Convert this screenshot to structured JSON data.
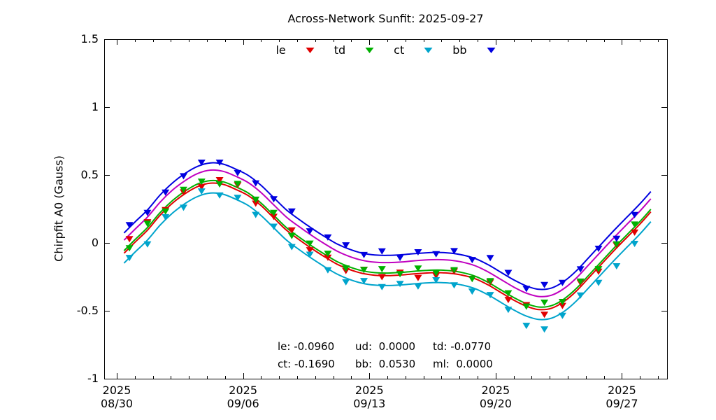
{
  "chart_data": {
    "type": "scatter",
    "title": "Across-Network Sunfit: 2025-09-27",
    "ylabel": "Chirpfit A0 (Gauss)",
    "xlabel": "",
    "ylim": [
      -1,
      1.5
    ],
    "xlim_days": [
      -0.7,
      30.5
    ],
    "x_epoch": "2025-08-30",
    "grid": false,
    "legend_position": "top-center-inside",
    "marker_shape": "triangle-down",
    "y_ticks": [
      {
        "v": -1,
        "label": "-1"
      },
      {
        "v": -0.5,
        "label": "-0.5"
      },
      {
        "v": 0,
        "label": "0"
      },
      {
        "v": 0.5,
        "label": "0.5"
      },
      {
        "v": 1,
        "label": "1"
      },
      {
        "v": 1.5,
        "label": "1.5"
      }
    ],
    "x_ticks": [
      {
        "day": 0,
        "line1": "2025",
        "line2": "08/30"
      },
      {
        "day": 7,
        "line1": "2025",
        "line2": "09/06"
      },
      {
        "day": 14,
        "line1": "2025",
        "line2": "09/13"
      },
      {
        "day": 21,
        "line1": "2025",
        "line2": "09/20"
      },
      {
        "day": 28,
        "line1": "2025",
        "line2": "09/27"
      }
    ],
    "x_minor_tick_step_days": 1,
    "legend": [
      {
        "label": "le",
        "color": "#e00000"
      },
      {
        "label": "td",
        "color": "#00b000"
      },
      {
        "label": "ct",
        "color": "#00a4cc"
      },
      {
        "label": "bb",
        "color": "#0000e0"
      }
    ],
    "fit_params": [
      "le: -0.0960",
      "ud:  0.0000",
      "td: -0.0770",
      "ct: -0.1690",
      "bb:  0.0530",
      "ml:  0.0000"
    ],
    "mean_curve_days_values": [
      [
        0.4,
        0.02
      ],
      [
        1.0,
        0.1
      ],
      [
        1.7,
        0.19
      ],
      [
        2.4,
        0.3
      ],
      [
        3.1,
        0.39
      ],
      [
        3.8,
        0.46
      ],
      [
        4.5,
        0.512
      ],
      [
        5.2,
        0.536
      ],
      [
        5.9,
        0.527
      ],
      [
        6.6,
        0.49
      ],
      [
        7.3,
        0.443
      ],
      [
        8.0,
        0.37
      ],
      [
        8.7,
        0.28
      ],
      [
        9.4,
        0.19
      ],
      [
        10.1,
        0.12
      ],
      [
        10.8,
        0.055
      ],
      [
        11.5,
        -0.005
      ],
      [
        12.2,
        -0.06
      ],
      [
        12.9,
        -0.1
      ],
      [
        13.6,
        -0.128
      ],
      [
        14.3,
        -0.142
      ],
      [
        15.0,
        -0.145
      ],
      [
        15.7,
        -0.141
      ],
      [
        16.4,
        -0.133
      ],
      [
        17.1,
        -0.126
      ],
      [
        17.8,
        -0.123
      ],
      [
        18.5,
        -0.128
      ],
      [
        19.2,
        -0.143
      ],
      [
        19.9,
        -0.17
      ],
      [
        20.6,
        -0.215
      ],
      [
        21.3,
        -0.27
      ],
      [
        22.0,
        -0.325
      ],
      [
        22.7,
        -0.37
      ],
      [
        23.4,
        -0.395
      ],
      [
        24.1,
        -0.385
      ],
      [
        24.8,
        -0.335
      ],
      [
        25.5,
        -0.255
      ],
      [
        26.2,
        -0.155
      ],
      [
        26.9,
        -0.055
      ],
      [
        27.6,
        0.045
      ],
      [
        28.3,
        0.14
      ],
      [
        29.0,
        0.235
      ],
      [
        29.6,
        0.325
      ]
    ],
    "series": [
      {
        "name": "ml",
        "color": "#c000c0",
        "offset": 0.0,
        "has_markers": false,
        "points": []
      },
      {
        "name": "le",
        "color": "#e00000",
        "offset": -0.096,
        "has_markers": true,
        "points": [
          [
            0.7,
            0.03
          ],
          [
            1.7,
            0.154
          ],
          [
            2.7,
            0.244
          ],
          [
            3.7,
            0.374
          ],
          [
            4.7,
            0.414
          ],
          [
            5.7,
            0.464
          ],
          [
            6.7,
            0.427
          ],
          [
            7.7,
            0.291
          ],
          [
            8.7,
            0.194
          ],
          [
            9.7,
            0.094
          ],
          [
            10.7,
            -0.052
          ],
          [
            11.7,
            -0.107
          ],
          [
            12.7,
            -0.205
          ],
          [
            13.7,
            -0.196
          ],
          [
            14.7,
            -0.25
          ],
          [
            15.7,
            -0.217
          ],
          [
            16.7,
            -0.256
          ],
          [
            17.7,
            -0.24
          ],
          [
            18.7,
            -0.208
          ],
          [
            19.7,
            -0.263
          ],
          [
            20.7,
            -0.289
          ],
          [
            21.7,
            -0.418
          ],
          [
            22.7,
            -0.456
          ],
          [
            23.7,
            -0.527
          ],
          [
            24.7,
            -0.462
          ],
          [
            25.7,
            -0.292
          ],
          [
            26.7,
            -0.21
          ],
          [
            27.7,
            -0.017
          ],
          [
            28.7,
            0.078
          ]
        ]
      },
      {
        "name": "td",
        "color": "#00b000",
        "offset": -0.077,
        "has_markers": true,
        "points": [
          [
            0.7,
            -0.037
          ],
          [
            1.7,
            0.143
          ],
          [
            2.7,
            0.233
          ],
          [
            3.7,
            0.393
          ],
          [
            4.7,
            0.453
          ],
          [
            5.7,
            0.433
          ],
          [
            6.7,
            0.436
          ],
          [
            7.7,
            0.32
          ],
          [
            8.7,
            0.223
          ],
          [
            9.7,
            0.053
          ],
          [
            10.7,
            -0.003
          ],
          [
            11.7,
            -0.078
          ],
          [
            12.7,
            -0.186
          ],
          [
            13.7,
            -0.197
          ],
          [
            14.7,
            -0.191
          ],
          [
            15.7,
            -0.228
          ],
          [
            16.7,
            -0.187
          ],
          [
            17.7,
            -0.221
          ],
          [
            18.7,
            -0.199
          ],
          [
            19.7,
            -0.264
          ],
          [
            20.7,
            -0.28
          ],
          [
            21.7,
            -0.369
          ],
          [
            22.7,
            -0.467
          ],
          [
            23.7,
            -0.438
          ],
          [
            24.7,
            -0.433
          ],
          [
            25.7,
            -0.283
          ],
          [
            26.7,
            -0.191
          ],
          [
            27.7,
            -0.008
          ],
          [
            28.7,
            0.137
          ]
        ]
      },
      {
        "name": "ct",
        "color": "#00a4cc",
        "offset": -0.169,
        "has_markers": true,
        "points": [
          [
            0.7,
            -0.109
          ],
          [
            1.7,
            -0.009
          ],
          [
            2.7,
            0.191
          ],
          [
            3.7,
            0.261
          ],
          [
            4.7,
            0.381
          ],
          [
            5.7,
            0.351
          ],
          [
            6.7,
            0.334
          ],
          [
            7.7,
            0.208
          ],
          [
            8.7,
            0.121
          ],
          [
            9.7,
            -0.029
          ],
          [
            10.7,
            -0.085
          ],
          [
            11.7,
            -0.2
          ],
          [
            12.7,
            -0.288
          ],
          [
            13.7,
            -0.279
          ],
          [
            14.7,
            -0.323
          ],
          [
            15.7,
            -0.3
          ],
          [
            16.7,
            -0.319
          ],
          [
            17.7,
            -0.273
          ],
          [
            18.7,
            -0.311
          ],
          [
            19.7,
            -0.356
          ],
          [
            20.7,
            -0.382
          ],
          [
            21.7,
            -0.491
          ],
          [
            22.7,
            -0.609
          ],
          [
            23.7,
            -0.635
          ],
          [
            24.7,
            -0.535
          ],
          [
            25.7,
            -0.385
          ],
          [
            26.7,
            -0.293
          ],
          [
            27.7,
            -0.17
          ],
          [
            28.7,
            -0.005
          ]
        ]
      },
      {
        "name": "bb",
        "color": "#0000e0",
        "offset": 0.053,
        "has_markers": true,
        "points": [
          [
            0.7,
            0.133
          ],
          [
            1.7,
            0.223
          ],
          [
            2.7,
            0.372
          ],
          [
            3.7,
            0.493
          ],
          [
            4.7,
            0.593
          ],
          [
            5.7,
            0.593
          ],
          [
            6.7,
            0.516
          ],
          [
            7.7,
            0.44
          ],
          [
            8.7,
            0.323
          ],
          [
            9.7,
            0.233
          ],
          [
            10.7,
            0.087
          ],
          [
            11.7,
            0.042
          ],
          [
            12.7,
            -0.016
          ],
          [
            13.7,
            -0.087
          ],
          [
            14.7,
            -0.061
          ],
          [
            15.7,
            -0.108
          ],
          [
            16.7,
            -0.067
          ],
          [
            17.7,
            -0.081
          ],
          [
            18.7,
            -0.059
          ],
          [
            19.7,
            -0.124
          ],
          [
            20.7,
            -0.11
          ],
          [
            21.7,
            -0.219
          ],
          [
            22.7,
            -0.337
          ],
          [
            23.7,
            -0.308
          ],
          [
            24.7,
            -0.293
          ],
          [
            25.7,
            -0.193
          ],
          [
            26.7,
            -0.041
          ],
          [
            27.7,
            0.032
          ],
          [
            28.7,
            0.207
          ]
        ]
      }
    ]
  }
}
